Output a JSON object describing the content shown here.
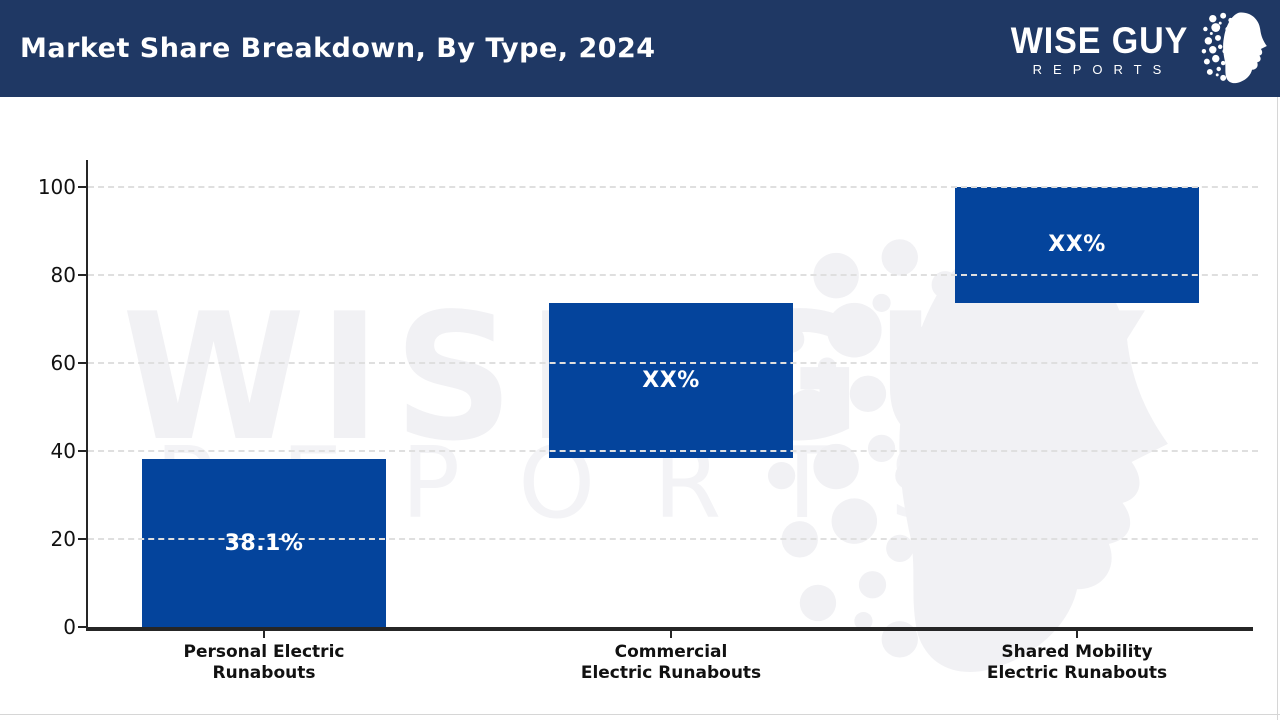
{
  "header": {
    "title": "Market Share Breakdown, By Type, 2024"
  },
  "logo": {
    "wordmark": "WISE GUY",
    "sub": "REPORTS"
  },
  "watermark": {
    "line1": "WISE GUY",
    "line2": "REPORTS"
  },
  "chart_data": {
    "type": "bar",
    "subtype": "stacked-percentage-waterfall",
    "title": "Market Share Breakdown, By Type, 2024",
    "xlabel": "",
    "ylabel": "",
    "ylim": [
      0,
      105
    ],
    "yticks": [
      0,
      20,
      40,
      60,
      80,
      100
    ],
    "grid": "dashed horizontal, light gray, drawn over bars",
    "legend": "none",
    "bar_color": "#04449c",
    "value_label_color": "#ffffff",
    "categories": [
      "Personal Electric Runabouts",
      "Commercial Electric Runabouts",
      "Shared Mobility Electric Runabouts"
    ],
    "category_lines": [
      [
        "Personal Electric",
        "Runabouts"
      ],
      [
        "Commercial",
        "Electric Runabouts"
      ],
      [
        "Shared Mobility",
        "Electric Runabouts"
      ]
    ],
    "bars": [
      {
        "category": "Personal Electric Runabouts",
        "from": 0,
        "to": 38.1,
        "label": "38.1%"
      },
      {
        "category": "Commercial Electric Runabouts",
        "from": 38.4,
        "to": 73.6,
        "label": "XX%"
      },
      {
        "category": "Shared Mobility Electric Runabouts",
        "from": 73.7,
        "to": 100,
        "label": "XX%"
      }
    ]
  },
  "colors": {
    "header_bg": "#1f3864",
    "bar": "#04449c",
    "axis": "#262626",
    "grid": "#dfdfdf",
    "watermark": "#f1f1f4",
    "text": "#111111"
  }
}
